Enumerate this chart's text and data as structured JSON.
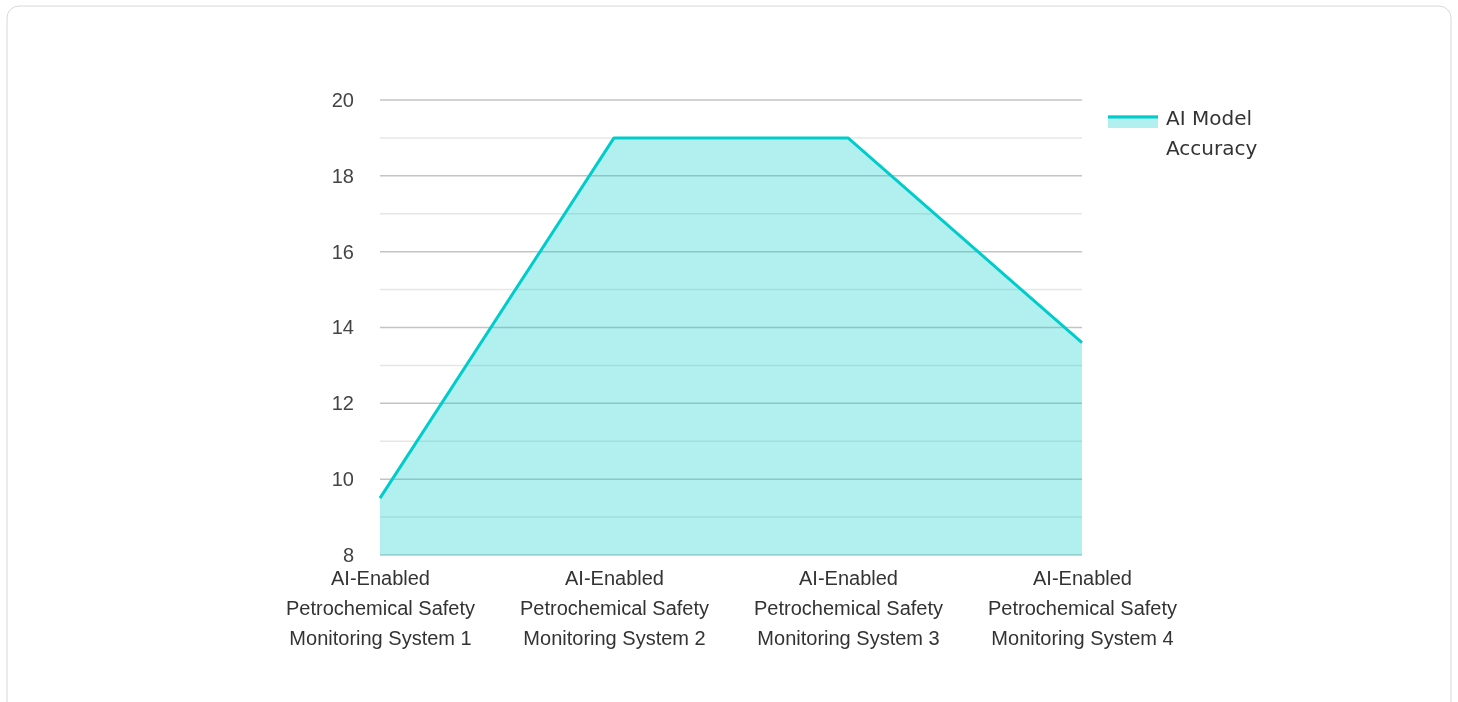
{
  "chart_data": {
    "type": "area",
    "categories": [
      "AI-Enabled Petrochemical Safety Monitoring System 1",
      "AI-Enabled Petrochemical Safety Monitoring System 2",
      "AI-Enabled Petrochemical Safety Monitoring System 3",
      "AI-Enabled Petrochemical Safety Monitoring System 4"
    ],
    "series": [
      {
        "name": "AI Model Accuracy",
        "color": "#00cccc",
        "values": [
          9.5,
          19,
          19,
          13.6
        ]
      }
    ],
    "ylim": [
      8,
      20
    ],
    "yticks": [
      8,
      {
        "value": 9,
        "label": null
      },
      10,
      {
        "value": 11,
        "label": null
      },
      12,
      {
        "value": 13,
        "label": null
      },
      14,
      {
        "value": 15,
        "label": null
      },
      16,
      {
        "value": 17,
        "label": null
      },
      18,
      {
        "value": 19,
        "label": null
      },
      20
    ],
    "grid": "y",
    "legend": "top right",
    "marker": "none",
    "line_style": "solid"
  }
}
